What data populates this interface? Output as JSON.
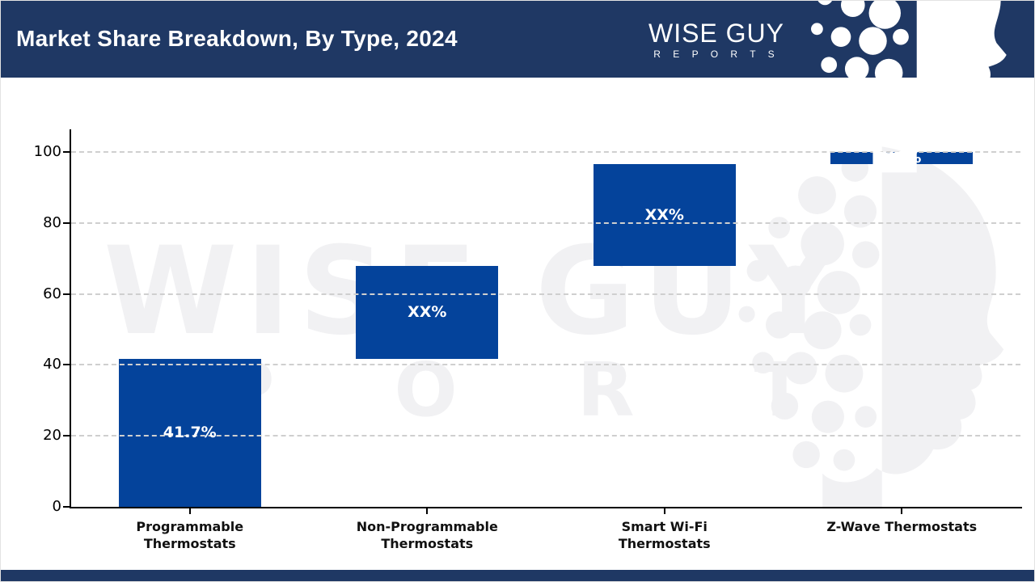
{
  "header": {
    "title": "Market Share Breakdown, By Type, 2024",
    "logo": {
      "line1": "WISE GUY",
      "line2": "R E P O R T S"
    }
  },
  "watermark": {
    "line1": "WISE GUY",
    "line2": "P O R T S"
  },
  "chart_data": {
    "type": "bar",
    "subtype": "stacked-waterfall",
    "title": "Market Share Breakdown, By Type, 2024",
    "categories": [
      "Programmable\nThermostats",
      "Non-Programmable\nThermostats",
      "Smart Wi-Fi\nThermostats",
      "Z-Wave Thermostats"
    ],
    "segments": [
      {
        "category": "Programmable Thermostats",
        "start": 0,
        "end": 41.7,
        "label": "41.7%"
      },
      {
        "category": "Non-Programmable Thermostats",
        "start": 41.7,
        "end": 67.9,
        "label": "XX%"
      },
      {
        "category": "Smart Wi-Fi Thermostats",
        "start": 67.9,
        "end": 96.6,
        "label": "XX%"
      },
      {
        "category": "Z-Wave Thermostats",
        "start": 96.6,
        "end": 100,
        "label": "XX%"
      }
    ],
    "yticks": [
      0,
      20,
      40,
      60,
      80,
      100
    ],
    "ylim": [
      0,
      106
    ],
    "xlabel": "",
    "ylabel": "",
    "legend": "none",
    "grid": "horizontal-dashed"
  },
  "colors": {
    "header_bg": "#1F3864",
    "footer_bg": "#1F3864",
    "bar": "#04439B",
    "grid": "#CFCFCF",
    "watermark": "#F1F1F3",
    "title_text": "#FFFFFF",
    "axis_text": "#000000"
  }
}
